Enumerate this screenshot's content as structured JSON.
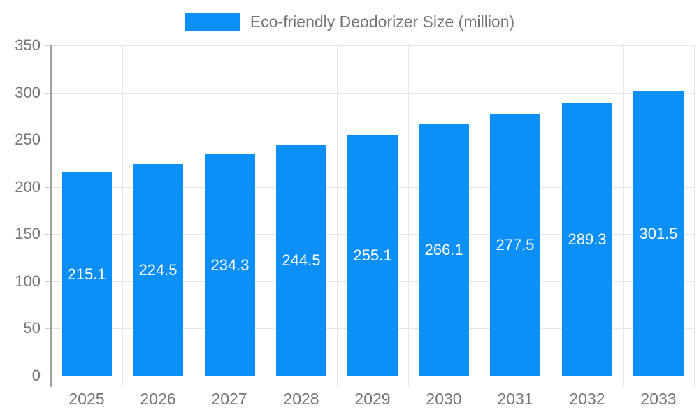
{
  "chart_data": {
    "type": "bar",
    "title": "Eco-friendly Deodorizer Size (million)",
    "legend": "Eco-friendly Deodorizer Size (million)",
    "legend_position": "top-center",
    "categories": [
      "2025",
      "2026",
      "2027",
      "2028",
      "2029",
      "2030",
      "2031",
      "2032",
      "2033"
    ],
    "values": [
      215.1,
      224.5,
      234.3,
      244.5,
      255.1,
      266.1,
      277.5,
      289.3,
      301.5
    ],
    "ylim": [
      0,
      350
    ],
    "yticks": [
      0,
      50,
      100,
      150,
      200,
      250,
      300,
      350
    ],
    "grid": "on",
    "xlabel": "",
    "ylabel": ""
  },
  "colors": {
    "bar": "#0d8ff8",
    "bar_value_text": "#ffffff",
    "axis_text": "#757575",
    "legend_text": "#757575",
    "gridline": "#e6e6e6",
    "baseline": "#cccccc",
    "axis_line": "#9e9e9e",
    "tick": "#cccccc",
    "background": "#ffffff"
  }
}
